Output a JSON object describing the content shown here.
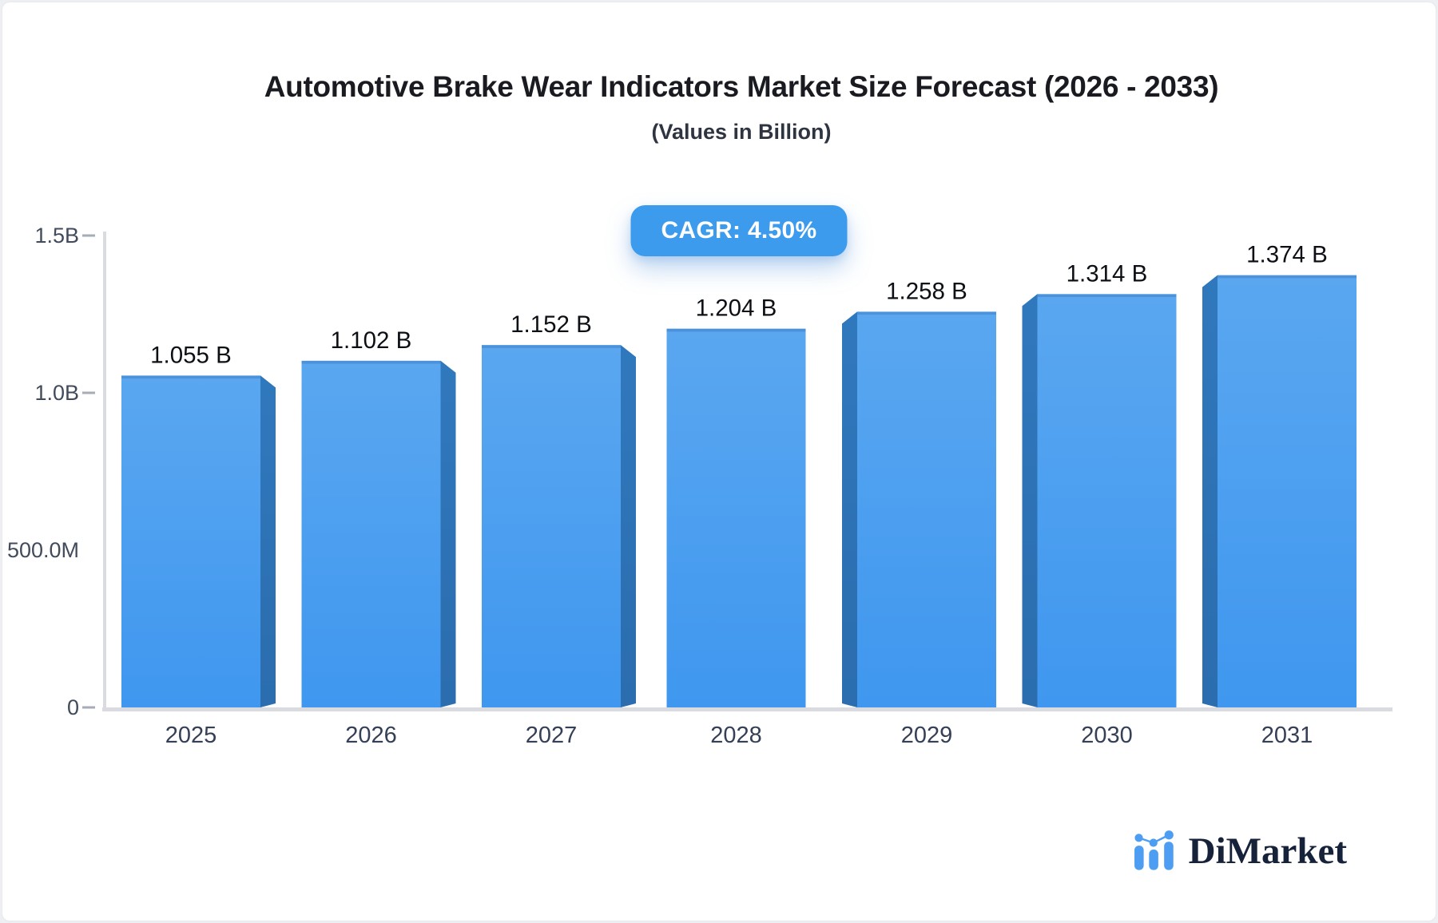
{
  "page": {
    "background": "#edeff2",
    "card_background": "#ffffff"
  },
  "header": {
    "title": "Automotive Brake Wear Indicators Market Size Forecast (2026 - 2033)",
    "subtitle": "(Values in Billion)"
  },
  "badge": {
    "label": "CAGR: 4.50%",
    "background": "#3d9bee",
    "text_color": "#ffffff"
  },
  "chart_data": {
    "type": "bar",
    "style": "3d-perspective-columns",
    "title": "Automotive Brake Wear Indicators Market Size Forecast (2026 - 2033)",
    "subtitle": "(Values in Billion)",
    "categories": [
      "2025",
      "2026",
      "2027",
      "2028",
      "2029",
      "2030",
      "2031"
    ],
    "values": [
      1.055,
      1.102,
      1.152,
      1.204,
      1.258,
      1.314,
      1.374
    ],
    "value_labels": [
      "1.055 B",
      "1.102 B",
      "1.152 B",
      "1.204 B",
      "1.258 B",
      "1.314 B",
      "1.374 B"
    ],
    "xlabel": "",
    "ylabel": "",
    "ylim": [
      0,
      1.5
    ],
    "grid": false,
    "legend": false,
    "y_axis": {
      "ticks": [
        {
          "label": "1.5B",
          "value": 1.5,
          "tick": true
        },
        {
          "label": "1.0B",
          "value": 1.0,
          "tick": true
        },
        {
          "label": "500.0M",
          "value": 0.5,
          "tick": false
        },
        {
          "label": "0",
          "value": 0.0,
          "tick": true
        }
      ]
    },
    "colors": {
      "bar_face_top": "#5aa7f0",
      "bar_face_bottom": "#3f97ef",
      "bar_top_edge": "#4a90d9",
      "bar_side": "#2e73b4",
      "axis_line": "#d9dbe0",
      "tick_mark": "#a6adb8",
      "y_label": "#414b5c",
      "x_label": "#353f55",
      "value_label": "#0c0f14"
    }
  },
  "branding": {
    "name": "DiMarket",
    "icon": "bar-chart-logo-icon",
    "text_color": "#15223a",
    "icon_color": "#4d9ef2"
  }
}
